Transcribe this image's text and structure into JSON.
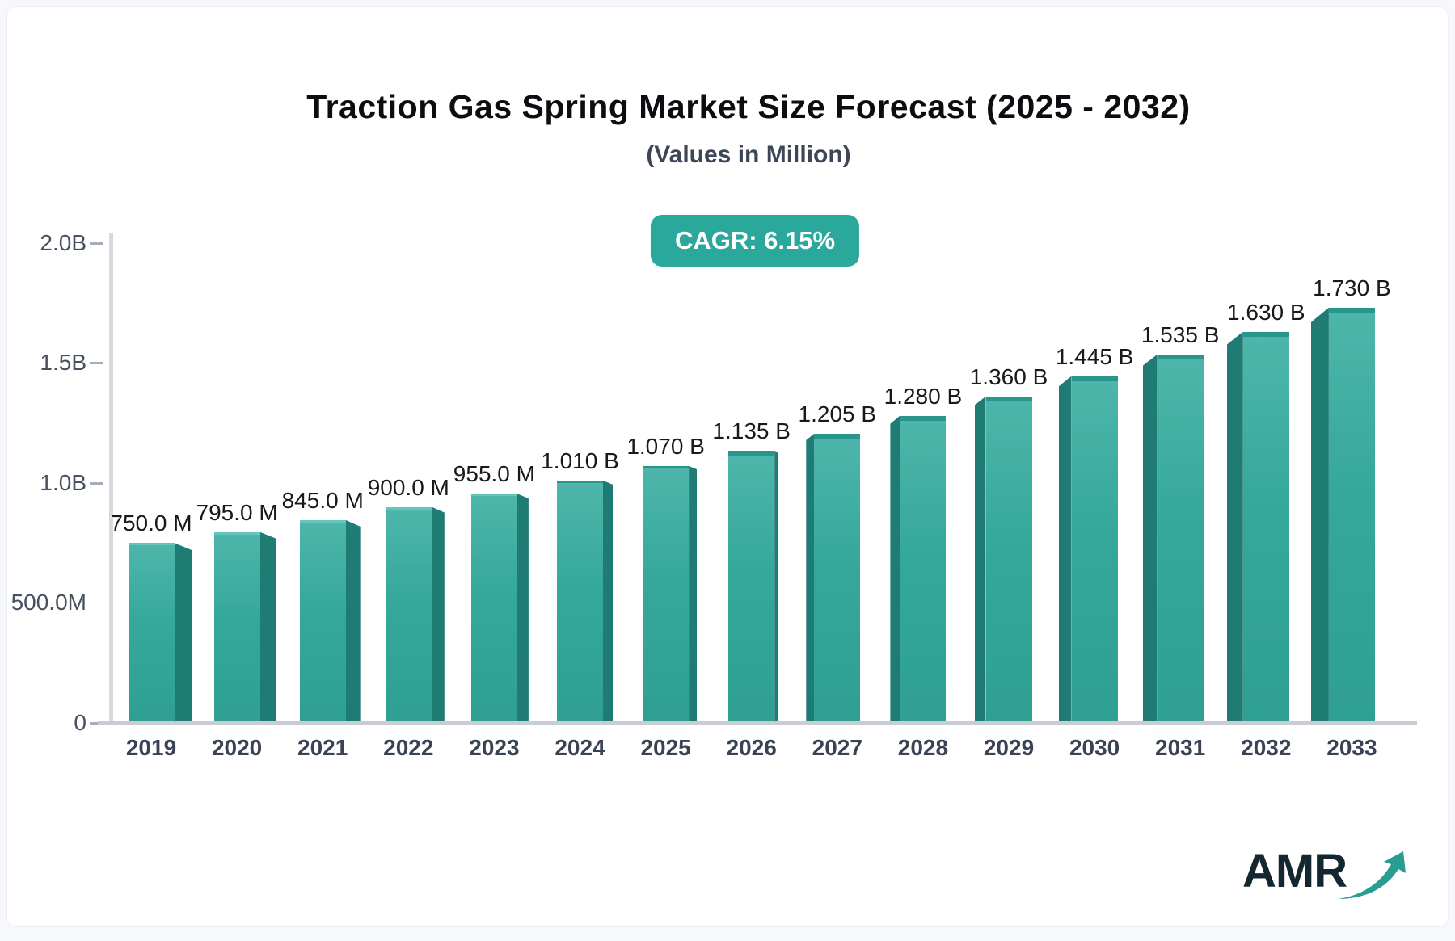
{
  "page": {
    "background": "#f7f8fb",
    "card_background": "#ffffff"
  },
  "header": {
    "title": "Traction Gas Spring Market Size Forecast (2025 - 2032)",
    "subtitle": "(Values in Million)",
    "cagr_badge": "CAGR: 6.15%"
  },
  "logo": {
    "text": "AMR",
    "arrow_icon": "growth-arrow-icon"
  },
  "colors": {
    "accent_teal": "#2aa89b",
    "bar_front_top": "#4eb6ab",
    "bar_front_bottom": "#2f9f93",
    "bar_side_dark": "#1f7c75",
    "bar_top_highlight": "#66c5ba",
    "bar_top_shade": "#28968c",
    "axis_line": "#d6d9de",
    "baseline": "#c9ccd3",
    "tick_text": "#46505f",
    "year_text": "#3a4354",
    "value_text": "#17191d",
    "badge_bg": "#2aa89b",
    "badge_text": "#ffffff",
    "title_text": "#0b0d10",
    "subtitle_text": "#3c4656"
  },
  "chart_data": {
    "type": "bar",
    "title": "Traction Gas Spring Market Size Forecast (2025 - 2032)",
    "subtitle": "(Values in Million)",
    "cagr_percent": 6.15,
    "categories": [
      "2019",
      "2020",
      "2021",
      "2022",
      "2023",
      "2024",
      "2025",
      "2026",
      "2027",
      "2028",
      "2029",
      "2030",
      "2031",
      "2032",
      "2033"
    ],
    "values_millions": [
      750,
      795,
      845,
      900,
      955,
      1010,
      1070,
      1135,
      1205,
      1280,
      1360,
      1445,
      1535,
      1630,
      1730
    ],
    "value_labels": [
      "750.0 M",
      "795.0 M",
      "845.0 M",
      "900.0 M",
      "955.0 M",
      "1.010 B",
      "1.070 B",
      "1.135 B",
      "1.205 B",
      "1.280 B",
      "1.360 B",
      "1.445 B",
      "1.535 B",
      "1.630 B",
      "1.730 B"
    ],
    "xlabel": "",
    "ylabel": "",
    "y_axis": {
      "max_millions": 2000,
      "ticks": [
        {
          "label": "2.0B",
          "millions": 2000,
          "dash": true
        },
        {
          "label": "1.5B",
          "millions": 1500,
          "dash": true
        },
        {
          "label": "1.0B",
          "millions": 1000,
          "dash": true
        },
        {
          "label": "500.0M",
          "millions": 500,
          "dash": false
        },
        {
          "label": "0",
          "millions": 0,
          "dash": true
        }
      ]
    },
    "grid": false,
    "legend": "none",
    "bar_style": "3d-perspective-teal"
  }
}
